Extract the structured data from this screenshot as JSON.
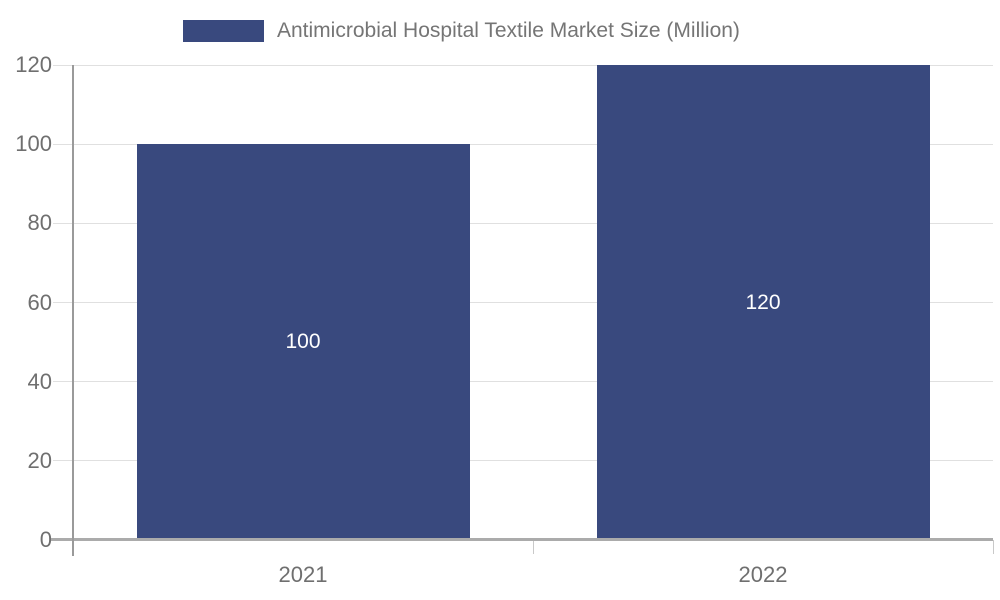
{
  "chart_data": {
    "type": "bar",
    "categories": [
      "2021",
      "2022"
    ],
    "series": [
      {
        "name": "Antimicrobial Hospital Textile Market Size (Million)",
        "values": [
          100,
          120
        ]
      }
    ],
    "data_labels": [
      "100",
      "120"
    ],
    "legend": {
      "label": "Antimicrobial Hospital Textile Market Size (Million)",
      "position": "top-center"
    },
    "xlabel": "",
    "ylabel": "",
    "yticks": [
      0,
      20,
      40,
      60,
      80,
      100,
      120
    ],
    "ylim": [
      0,
      120
    ],
    "grid": true,
    "colors": {
      "bar": "#39497E",
      "bar_label_text": "#ffffff",
      "legend_text": "#757575",
      "tick_text": "#6f6f6f",
      "gridline": "#e0e0e0",
      "x_axis": "#ababab",
      "y_axis": "#9a9a9a"
    }
  }
}
